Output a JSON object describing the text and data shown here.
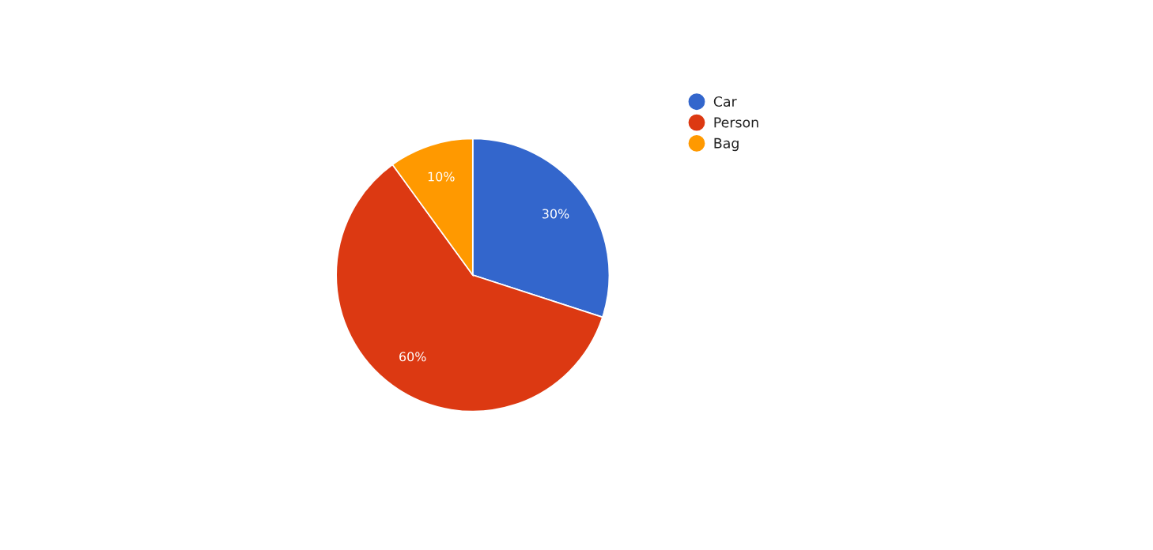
{
  "chart_data": {
    "type": "pie",
    "categories": [
      "Car",
      "Person",
      "Bag"
    ],
    "values": [
      30,
      60,
      10
    ],
    "colors": [
      "#3366cc",
      "#dc3912",
      "#ff9900"
    ],
    "value_labels": [
      "30%",
      "60%",
      "10%"
    ],
    "legend": "right"
  }
}
